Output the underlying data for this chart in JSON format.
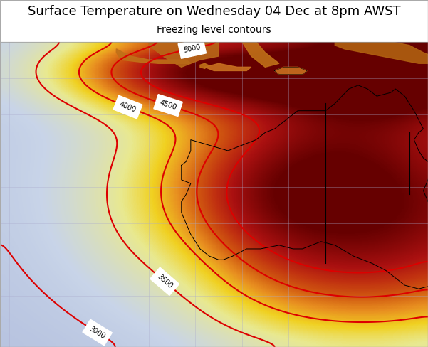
{
  "title": "Surface Temperature on Wednesday 04 Dec at 8pm AWST",
  "subtitle": "Freezing level contours",
  "title_fontsize": 13,
  "subtitle_fontsize": 10,
  "background_color": "#ffffff",
  "map_background": "#b8c8e8",
  "border_color": "#cccccc",
  "figsize": [
    6.01,
    4.88
  ],
  "dpi": 100,
  "lon_min": 94,
  "lon_max": 140,
  "lat_min": -47,
  "lat_max": -5,
  "contour_levels": [
    3000,
    3500,
    4000,
    4500,
    5000
  ],
  "contour_color": "#dd0000",
  "contour_linewidth": 1.5,
  "label_fontsize": 7,
  "grid_color": "#aaaacc",
  "grid_alpha": 0.5,
  "grid_linewidth": 0.5,
  "state_border_color": "#000000",
  "state_border_linewidth": 0.8,
  "coast_color": "#000000",
  "coast_linewidth": 0.5
}
